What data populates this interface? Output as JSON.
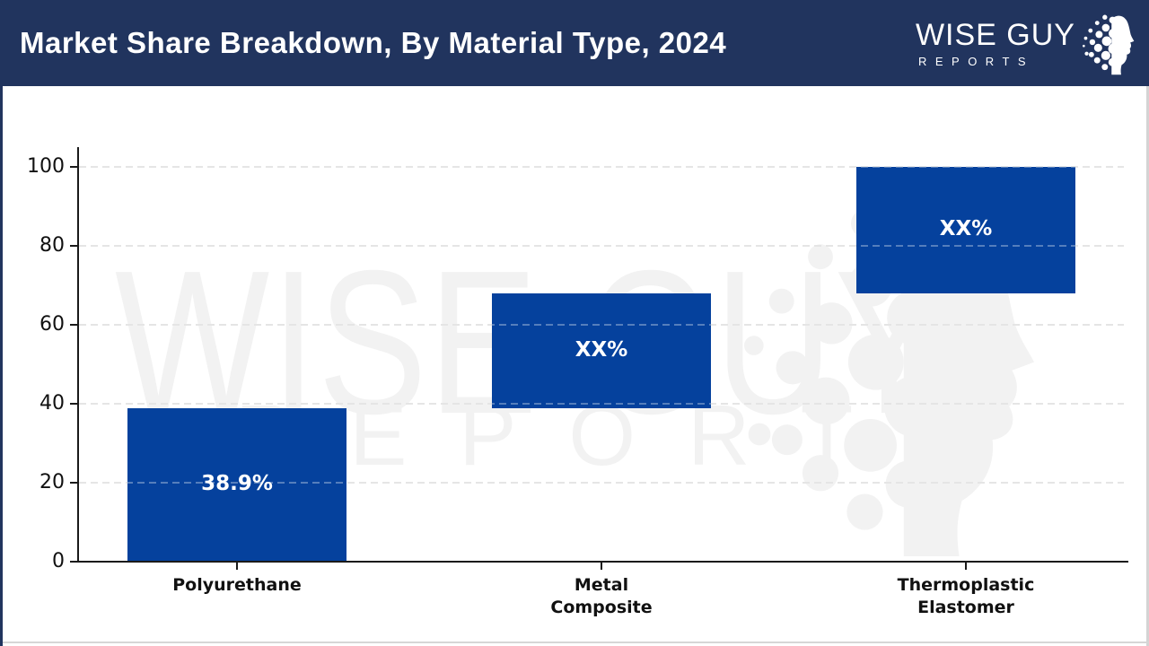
{
  "header": {
    "title": "Market Share Breakdown, By Material Type, 2024",
    "logo": {
      "line1": "WISE GUY",
      "line2": "REPORTS"
    }
  },
  "watermark": {
    "line1": "WISE GUY",
    "line2": "REPORTS"
  },
  "colors": {
    "header_bg": "#21345e",
    "bar": "#05419d",
    "grid": "#d9d9d9",
    "grid_on_bar": "rgba(255,255,255,0.32)",
    "axis": "#1a1a1a",
    "watermark": "#f2f2f2",
    "bar_label": "#ffffff",
    "text": "#111111"
  },
  "chart_data": {
    "type": "bar",
    "subtype": "waterfall",
    "title": "Market Share Breakdown, By Material Type, 2024",
    "categories": [
      "Polyurethane",
      "Metal Composite",
      "Thermoplastic Elastomer"
    ],
    "segments": [
      {
        "category": "Polyurethane",
        "start": 0,
        "end": 38.9,
        "label": "38.9%"
      },
      {
        "category": "Metal Composite",
        "start": 38.9,
        "end": 68,
        "label": "XX%"
      },
      {
        "category": "Thermoplastic Elastomer",
        "start": 68,
        "end": 100,
        "label": "XX%"
      }
    ],
    "yticks": [
      0,
      20,
      40,
      60,
      80,
      100
    ],
    "ylim": [
      0,
      105
    ],
    "xlabel": "",
    "ylabel": "",
    "grid": "dashed-horizontal",
    "legend": "none"
  }
}
